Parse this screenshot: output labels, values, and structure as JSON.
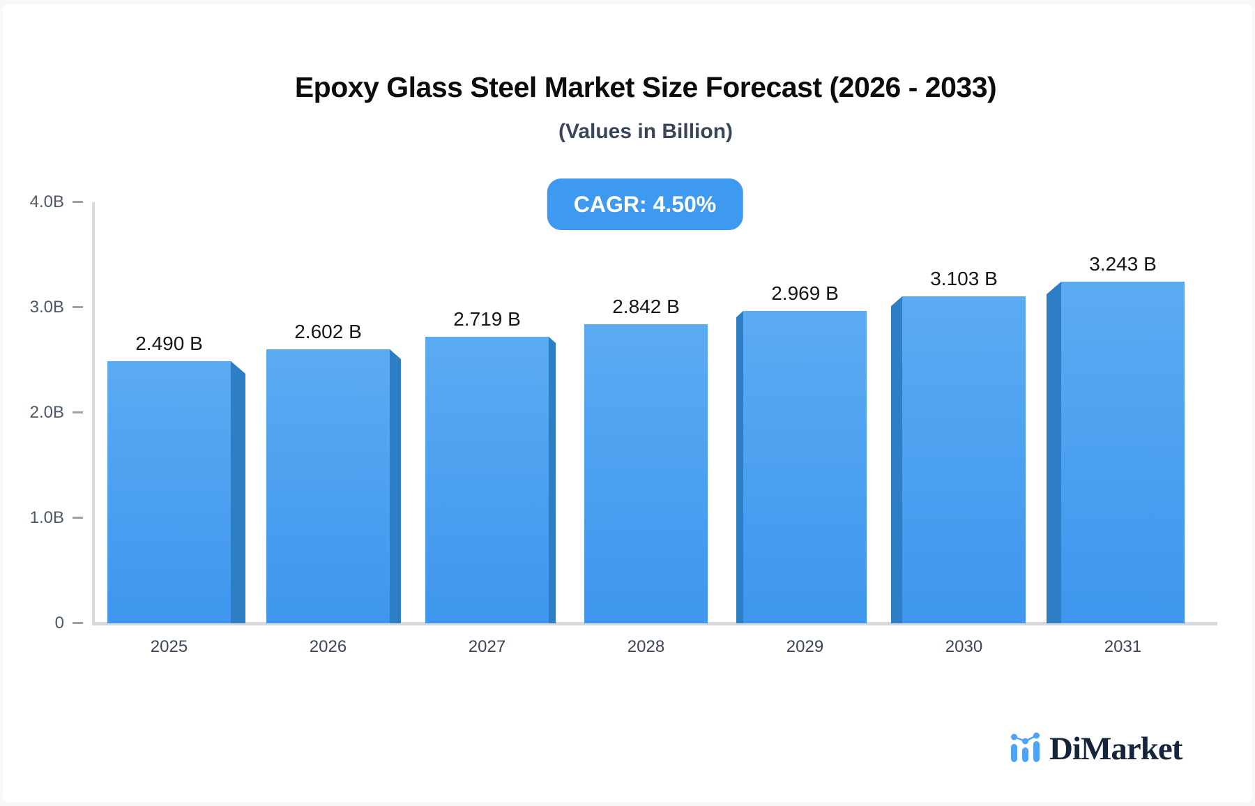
{
  "header": {
    "title": "Epoxy Glass Steel Market Size Forecast (2026 - 2033)",
    "subtitle": "(Values in Billion)",
    "cagr_badge": "CAGR: 4.50%"
  },
  "chart_data": {
    "type": "bar",
    "title": "Epoxy Glass Steel Market Size Forecast (2026 - 2033)",
    "subtitle": "(Values in Billion)",
    "cagr_pct": 4.5,
    "categories": [
      "2025",
      "2026",
      "2027",
      "2028",
      "2029",
      "2030",
      "2031"
    ],
    "values": [
      2.49,
      2.602,
      2.719,
      2.842,
      2.969,
      3.103,
      3.243
    ],
    "value_labels": [
      "2.490 B",
      "2.602 B",
      "2.719 B",
      "2.842 B",
      "2.969 B",
      "3.103 B",
      "3.243 B"
    ],
    "unit": "Billion",
    "ylim": [
      0,
      4.0
    ],
    "ytick_labels": [
      "0",
      "1.0B",
      "2.0B",
      "3.0B",
      "4.0B"
    ],
    "grid": false,
    "legend": false,
    "style": "3d-perspective-bars"
  },
  "colors": {
    "bar_top": "#5babf2",
    "bar_bottom": "#3e96ee",
    "bar_side": "#2e7ec5",
    "badge_bg": "#3e9af0",
    "badge_text": "#ffffff",
    "axis": "#d5d8dd",
    "tick_text": "#4d5768",
    "logo_blue": "#4da3f5",
    "logo_navy": "#16243c"
  },
  "branding": {
    "logo_text": "DiMarket",
    "logo_icon": "mini-bar-chart-icon"
  }
}
